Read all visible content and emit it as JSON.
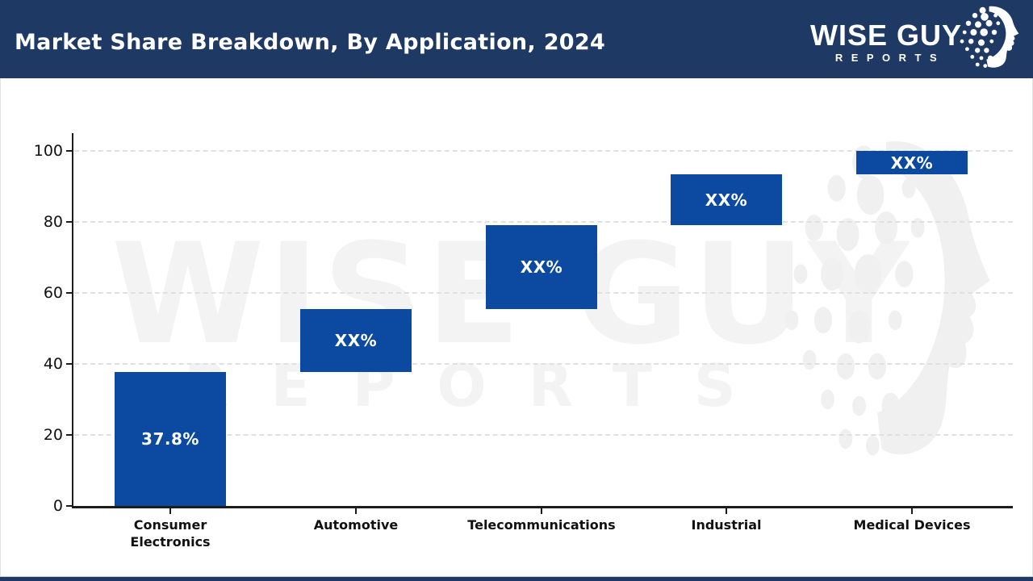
{
  "header": {
    "title": "Market Share Breakdown, By Application, 2024",
    "logo": {
      "line1": "WISE GUY",
      "line2": "REPORTS"
    }
  },
  "watermark": {
    "line1": "WISE GUY",
    "line2": "REPORTS"
  },
  "colors": {
    "header_bg": "#1e3a64",
    "bar_blue": "#0b4aa0",
    "bar_label": "#ffffff",
    "gridline": "#e0e0e0",
    "axis": "#1c1c1c",
    "watermark": "#f3f3f3"
  },
  "chart_data": {
    "type": "bar",
    "subtype": "waterfall",
    "title": "Market Share Breakdown, By Application, 2024",
    "xlabel": "",
    "ylabel": "",
    "ylim": [
      0,
      105
    ],
    "yticks": [
      0,
      20,
      40,
      60,
      80,
      100
    ],
    "grid": "horizontal-dashed",
    "legend": "none",
    "categories": [
      "Consumer\nElectronics",
      "Automotive",
      "Telecommunications",
      "Industrial",
      "Medical Devices"
    ],
    "series": [
      {
        "segments": [
          {
            "category": "Consumer Electronics",
            "start": 0,
            "end": 37.8,
            "label": "37.8%"
          },
          {
            "category": "Automotive",
            "start": 37.8,
            "end": 55.5,
            "label": "XX%"
          },
          {
            "category": "Telecommunications",
            "start": 55.5,
            "end": 79,
            "label": "XX%"
          },
          {
            "category": "Industrial",
            "start": 79,
            "end": 93.4,
            "label": "XX%"
          },
          {
            "category": "Medical Devices",
            "start": 93.4,
            "end": 100,
            "label": "XX%"
          }
        ]
      }
    ]
  }
}
